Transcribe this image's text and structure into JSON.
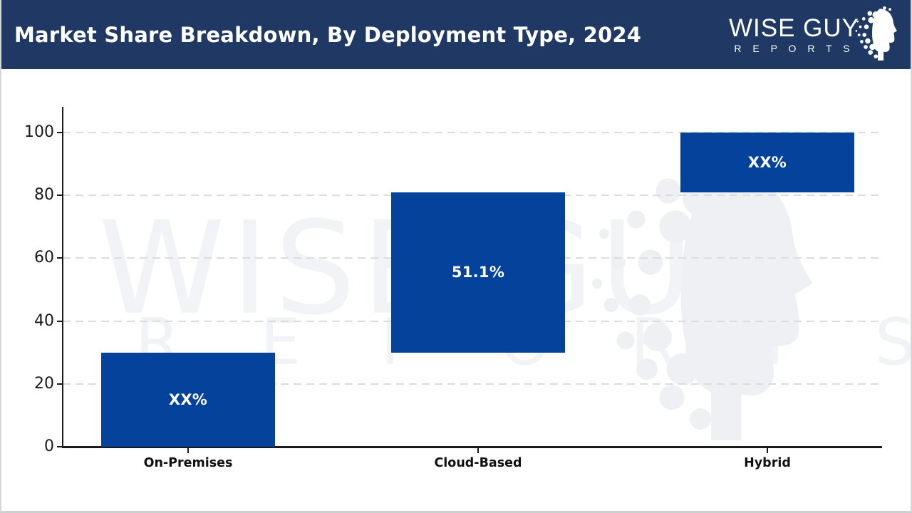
{
  "header": {
    "title": "Market Share Breakdown, By Deployment Type, 2024",
    "logo": {
      "name_line": "WISE GUY",
      "reports_line": "R E P O R T S"
    }
  },
  "watermark": {
    "name_line": "WISE GUY",
    "reports_line": "R E P O R T S"
  },
  "colors": {
    "header_bg": "#1f3864",
    "bar": "#04429c",
    "axis": "#1a1a1a",
    "grid": "#dcdcdc",
    "watermark": "#f2f3f6",
    "bar_label_text": "#ffffff"
  },
  "chart_data": {
    "type": "bar",
    "subtype": "waterfall",
    "title": "Market Share Breakdown, By Deployment Type, 2024",
    "categories": [
      "On-Premises",
      "Cloud-Based",
      "Hybrid"
    ],
    "series": [
      {
        "name": "Market share (%)",
        "segments": [
          {
            "category": "On-Premises",
            "start": 0,
            "end": 29.9,
            "label": "XX%"
          },
          {
            "category": "Cloud-Based",
            "start": 29.9,
            "end": 81.0,
            "label": "51.1%"
          },
          {
            "category": "Hybrid",
            "start": 81.0,
            "end": 100,
            "label": "XX%"
          }
        ]
      }
    ],
    "yticks": [
      0,
      20,
      40,
      60,
      80,
      100
    ],
    "ylim": [
      0,
      107
    ],
    "xlabel": "",
    "ylabel": "",
    "grid": true,
    "grid_style": "dashed",
    "legend": false
  }
}
